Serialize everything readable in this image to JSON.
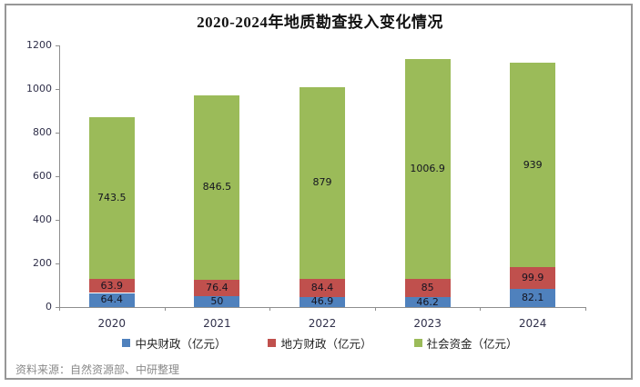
{
  "title": "2020-2024年地质勘查投入变化情况",
  "source_note": "资料来源：自然资源部、中研整理",
  "colors": {
    "central_finance": "#4F81BD",
    "local_finance": "#C0504D",
    "social_capital": "#9BBB59",
    "axis": "#8e8e8e",
    "frame_border": "#979797"
  },
  "chart_data": {
    "type": "bar",
    "stacked": true,
    "title": "2020-2024年地质勘查投入变化情况",
    "categories": [
      "2020",
      "2021",
      "2022",
      "2023",
      "2024"
    ],
    "series": [
      {
        "name": "中央财政（亿元）",
        "color": "#4F81BD",
        "values": [
          64.4,
          50,
          46.9,
          46.2,
          82.1
        ]
      },
      {
        "name": "地方财政（亿元）",
        "color": "#C0504D",
        "values": [
          63.9,
          76.4,
          84.4,
          85,
          99.9
        ]
      },
      {
        "name": "社会资金（亿元）",
        "color": "#9BBB59",
        "values": [
          743.5,
          846.5,
          879,
          1006.9,
          939
        ]
      }
    ],
    "xlabel": "",
    "ylabel": "",
    "ylim": [
      0,
      1200
    ],
    "yticks": [
      0,
      200,
      400,
      600,
      800,
      1000,
      1200
    ],
    "grid": false,
    "legend_position": "bottom",
    "data_labels": true
  }
}
